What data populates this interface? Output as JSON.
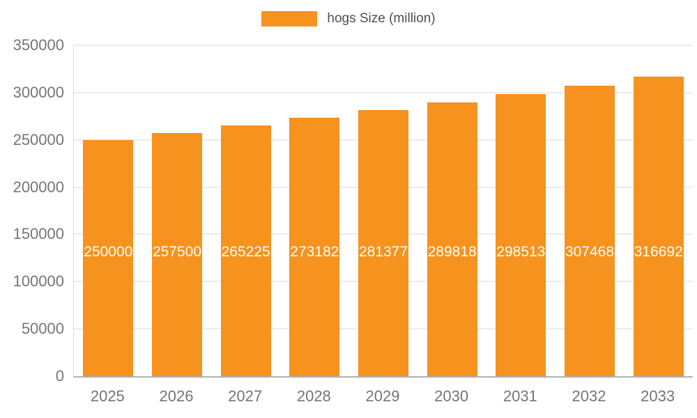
{
  "legend": {
    "items": [
      {
        "label": "hogs Size (million)"
      }
    ]
  },
  "colors": {
    "bar": "#f6921e",
    "grid": "#d9d9d9",
    "axis_line": "#b0b0b0",
    "axis_text": "#757575",
    "value_label_text": "#ffffff",
    "legend_text": "#4d4d4d"
  },
  "chart_data": {
    "type": "bar",
    "title": "hogs Size (million)",
    "categories": [
      "2025",
      "2026",
      "2027",
      "2028",
      "2029",
      "2030",
      "2031",
      "2032",
      "2033"
    ],
    "series": [
      {
        "name": "hogs Size (million)",
        "values": [
          250000,
          257500,
          265225,
          273182,
          281377,
          289818,
          298513,
          307468,
          316692
        ]
      }
    ],
    "xlabel": "",
    "ylabel": "",
    "ylim": [
      0,
      350000
    ],
    "yticks": [
      0,
      50000,
      100000,
      150000,
      200000,
      250000,
      300000,
      350000
    ],
    "ytick_step": 50000,
    "grid": true,
    "legend_position": "top",
    "bar_value_labels": true
  }
}
